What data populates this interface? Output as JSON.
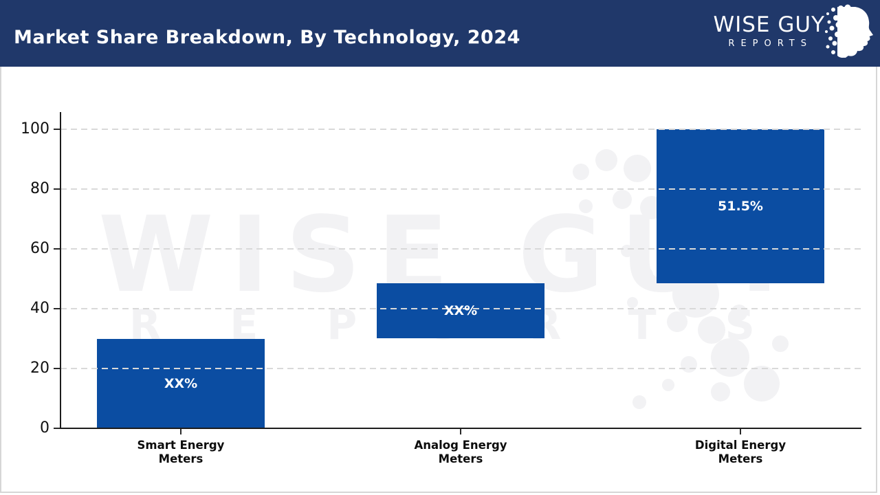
{
  "header": {
    "title": "Market Share Breakdown, By Technology, 2024",
    "logo": {
      "wordmark": "WISE GUY",
      "subtext": "REPORTS"
    }
  },
  "watermark": {
    "line1": "WISE GUY",
    "line2": "REPORTS"
  },
  "chart_data": {
    "type": "bar",
    "subtype": "waterfall",
    "title": "Market Share Breakdown, By Technology, 2024",
    "categories": [
      "Smart Energy\nMeters",
      "Analog Energy\nMeters",
      "Digital Energy\nMeters"
    ],
    "series": [
      {
        "name": "Market Share (%)",
        "segments": [
          {
            "category": "Smart Energy Meters",
            "start": 0,
            "end": 30,
            "value": 30,
            "label": "XX%"
          },
          {
            "category": "Analog Energy Meters",
            "start": 30,
            "end": 48.5,
            "value": 18.5,
            "label": "XX%"
          },
          {
            "category": "Digital Energy Meters",
            "start": 48.5,
            "end": 100,
            "value": 51.5,
            "label": "51.5%"
          }
        ]
      }
    ],
    "xlabel": "",
    "ylabel": "",
    "ylim": [
      0,
      105
    ],
    "yticks": [
      0,
      20,
      40,
      60,
      80,
      100
    ],
    "grid": "horizontal-dashed",
    "legend": "none",
    "bar_color": "#0b4da2",
    "bar_label_color": "#ffffff"
  },
  "colors": {
    "header_bg": "#20386a",
    "bar": "#0b4da2",
    "grid": "#d9d9d9",
    "axis": "#1c1c1c",
    "watermark": "#f2f2f4",
    "page_border": "#d6d6d6"
  }
}
